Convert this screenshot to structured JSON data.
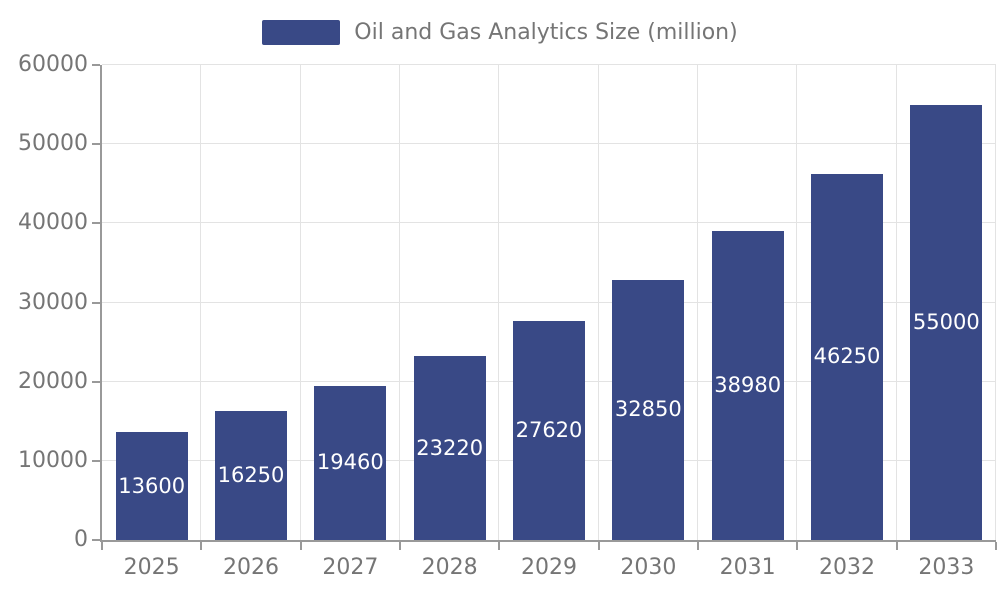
{
  "chart_data": {
    "type": "bar",
    "title": "",
    "legend": "Oil and Gas Analytics Size (million)",
    "legend_position": "top-center",
    "categories": [
      "2025",
      "2026",
      "2027",
      "2028",
      "2029",
      "2030",
      "2031",
      "2032",
      "2033"
    ],
    "values": [
      13600,
      16250,
      19460,
      23220,
      27620,
      32850,
      38980,
      46250,
      55000
    ],
    "xlabel": "",
    "ylabel": "",
    "ylim": [
      0,
      60000
    ],
    "yticks": [
      0,
      10000,
      20000,
      30000,
      40000,
      50000,
      60000
    ],
    "grid": true,
    "colors": {
      "bar": "#394986",
      "value_label": "#ffffff",
      "axis": "#999999",
      "grid": "#e3e3e3",
      "tick_text": "#757575",
      "legend_text": "#757575"
    }
  }
}
